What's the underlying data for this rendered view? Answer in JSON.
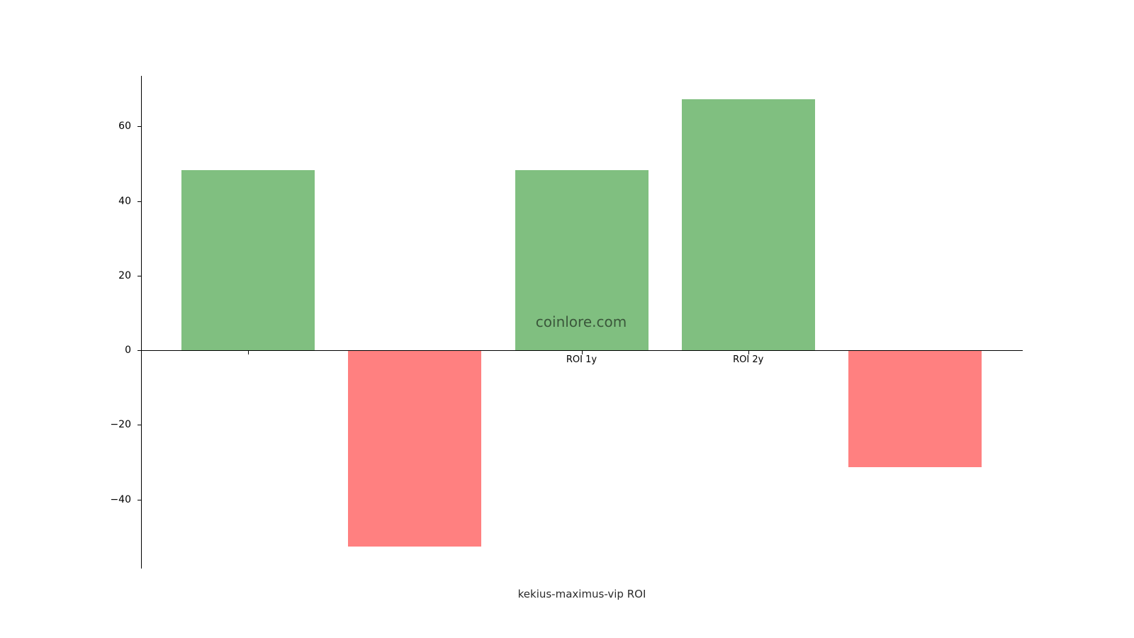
{
  "watermark_text": "coinlore.com",
  "chart_data": {
    "type": "bar",
    "categories": [
      "",
      "",
      "ROI 1y",
      "ROI 2y",
      ""
    ],
    "values": [
      48.3,
      -52.7,
      48.3,
      67.2,
      -31.4
    ],
    "series_name": "ROI",
    "title": "",
    "xlabel": "kekius-maximus-vip ROI",
    "ylabel": "",
    "yticks": [
      60,
      40,
      20,
      0,
      -20,
      -40
    ],
    "ylim": [
      -58.7,
      73.4
    ],
    "grid": false,
    "legend": "none",
    "positive_color": "#80bf80",
    "negative_color": "#ff8080",
    "axis_color": "#000000",
    "watermark": "coinlore.com"
  }
}
